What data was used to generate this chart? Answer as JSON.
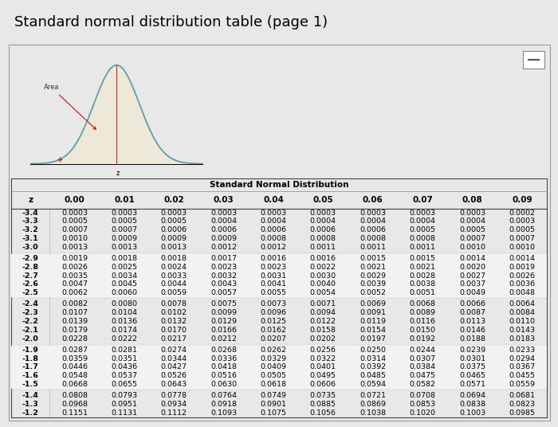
{
  "title": "Standard normal distribution table (page 1)",
  "table_header": "Standard Normal Distribution",
  "col_headers": [
    "z",
    "0.00",
    "0.01",
    "0.02",
    "0.03",
    "0.04",
    "0.05",
    "0.06",
    "0.07",
    "0.08",
    "0.09"
  ],
  "row_groups": [
    {
      "rows": [
        [
          "-3.4",
          "0.0003",
          "0.0003",
          "0.0003",
          "0.0003",
          "0.0003",
          "0.0003",
          "0.0003",
          "0.0003",
          "0.0003",
          "0.0002"
        ],
        [
          "-3.3",
          "0.0005",
          "0.0005",
          "0.0005",
          "0.0004",
          "0.0004",
          "0.0004",
          "0.0004",
          "0.0004",
          "0.0004",
          "0.0003"
        ],
        [
          "-3.2",
          "0.0007",
          "0.0007",
          "0.0006",
          "0.0006",
          "0.0006",
          "0.0006",
          "0.0006",
          "0.0005",
          "0.0005",
          "0.0005"
        ],
        [
          "-3.1",
          "0.0010",
          "0.0009",
          "0.0009",
          "0.0009",
          "0.0008",
          "0.0008",
          "0.0008",
          "0.0008",
          "0.0007",
          "0.0007"
        ],
        [
          "-3.0",
          "0.0013",
          "0.0013",
          "0.0013",
          "0.0012",
          "0.0012",
          "0.0011",
          "0.0011",
          "0.0011",
          "0.0010",
          "0.0010"
        ]
      ]
    },
    {
      "rows": [
        [
          "-2.9",
          "0.0019",
          "0.0018",
          "0.0018",
          "0.0017",
          "0.0016",
          "0.0016",
          "0.0015",
          "0.0015",
          "0.0014",
          "0.0014"
        ],
        [
          "-2.8",
          "0.0026",
          "0.0025",
          "0.0024",
          "0.0023",
          "0.0023",
          "0.0022",
          "0.0021",
          "0.0021",
          "0.0020",
          "0.0019"
        ],
        [
          "-2.7",
          "0.0035",
          "0.0034",
          "0.0033",
          "0.0032",
          "0.0031",
          "0.0030",
          "0.0029",
          "0.0028",
          "0.0027",
          "0.0026"
        ],
        [
          "-2.6",
          "0.0047",
          "0.0045",
          "0.0044",
          "0.0043",
          "0.0041",
          "0.0040",
          "0.0039",
          "0.0038",
          "0.0037",
          "0.0036"
        ],
        [
          "-2.5",
          "0.0062",
          "0.0060",
          "0.0059",
          "0.0057",
          "0.0055",
          "0.0054",
          "0.0052",
          "0.0051",
          "0.0049",
          "0.0048"
        ]
      ]
    },
    {
      "rows": [
        [
          "-2.4",
          "0.0082",
          "0.0080",
          "0.0078",
          "0.0075",
          "0.0073",
          "0.0071",
          "0.0069",
          "0.0068",
          "0.0066",
          "0.0064"
        ],
        [
          "-2.3",
          "0.0107",
          "0.0104",
          "0.0102",
          "0.0099",
          "0.0096",
          "0.0094",
          "0.0091",
          "0.0089",
          "0.0087",
          "0.0084"
        ],
        [
          "-2.2",
          "0.0139",
          "0.0136",
          "0.0132",
          "0.0129",
          "0.0125",
          "0.0122",
          "0.0119",
          "0.0116",
          "0.0113",
          "0.0110"
        ],
        [
          "-2.1",
          "0.0179",
          "0.0174",
          "0.0170",
          "0.0166",
          "0.0162",
          "0.0158",
          "0.0154",
          "0.0150",
          "0.0146",
          "0.0143"
        ],
        [
          "-2.0",
          "0.0228",
          "0.0222",
          "0.0217",
          "0.0212",
          "0.0207",
          "0.0202",
          "0.0197",
          "0.0192",
          "0.0188",
          "0.0183"
        ]
      ]
    },
    {
      "rows": [
        [
          "-1.9",
          "0.0287",
          "0.0281",
          "0.0274",
          "0.0268",
          "0.0262",
          "0.0256",
          "0.0250",
          "0.0244",
          "0.0239",
          "0.0233"
        ],
        [
          "-1.8",
          "0.0359",
          "0.0351",
          "0.0344",
          "0.0336",
          "0.0329",
          "0.0322",
          "0.0314",
          "0.0307",
          "0.0301",
          "0.0294"
        ],
        [
          "-1.7",
          "0.0446",
          "0.0436",
          "0.0427",
          "0.0418",
          "0.0409",
          "0.0401",
          "0.0392",
          "0.0384",
          "0.0375",
          "0.0367"
        ],
        [
          "-1.6",
          "0.0548",
          "0.0537",
          "0.0526",
          "0.0516",
          "0.0505",
          "0.0495",
          "0.0485",
          "0.0475",
          "0.0465",
          "0.0455"
        ],
        [
          "-1.5",
          "0.0668",
          "0.0655",
          "0.0643",
          "0.0630",
          "0.0618",
          "0.0606",
          "0.0594",
          "0.0582",
          "0.0571",
          "0.0559"
        ]
      ]
    },
    {
      "rows": [
        [
          "-1.4",
          "0.0808",
          "0.0793",
          "0.0778",
          "0.0764",
          "0.0749",
          "0.0735",
          "0.0721",
          "0.0708",
          "0.0694",
          "0.0681"
        ],
        [
          "-1.3",
          "0.0968",
          "0.0951",
          "0.0934",
          "0.0918",
          "0.0901",
          "0.0885",
          "0.0869",
          "0.0853",
          "0.0838",
          "0.0823"
        ],
        [
          "-1.2",
          "0.1151",
          "0.1131",
          "0.1112",
          "0.1093",
          "0.1075",
          "0.1056",
          "0.1038",
          "0.1020",
          "0.1003",
          "0.0985"
        ]
      ]
    }
  ],
  "bg_color": "#e8e8e8",
  "table_bg": "#ffffff",
  "title_fontsize": 13,
  "cell_fontsize": 6.8,
  "header_fontsize": 7.5,
  "curve_color": "#5599aa",
  "fill_color": "#ede8d8",
  "area_text_color": "#333333",
  "arrow_color": "#cc2222",
  "z_line_color": "#aa3333",
  "icon_color": "#555555"
}
